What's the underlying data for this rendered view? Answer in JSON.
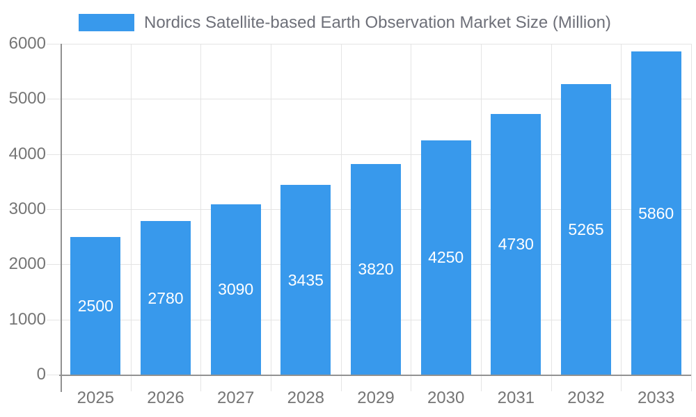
{
  "chart_data": {
    "type": "bar",
    "title": "Nordics Satellite-based Earth Observation Market Size (Million)",
    "categories": [
      "2025",
      "2026",
      "2027",
      "2028",
      "2029",
      "2030",
      "2031",
      "2032",
      "2033"
    ],
    "values": [
      2500,
      2780,
      3090,
      3435,
      3820,
      4250,
      4730,
      5265,
      5860
    ],
    "series_name": "Nordics Satellite-based Earth Observation Market Size (Million)",
    "xlabel": "",
    "ylabel": "",
    "ylim": [
      0,
      6000
    ],
    "yticks": [
      0,
      1000,
      2000,
      3000,
      4000,
      5000,
      6000
    ],
    "grid": true,
    "legend_position": "top",
    "bar_color": "#3899EC",
    "bar_label_color": "#ffffff",
    "axis_label_color": "#757575",
    "legend_text_color": "#6e7079",
    "grid_color": "#e4e4e4",
    "axis_line_color": "#919191",
    "background_color": "#ffffff"
  }
}
